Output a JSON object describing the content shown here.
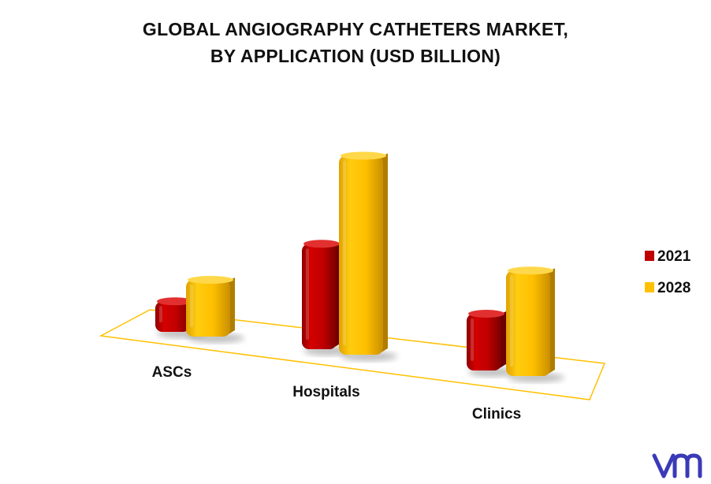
{
  "chart_data": {
    "type": "bar",
    "title_lines": [
      "GLOBAL ANGIOGRAPHY CATHETERS MARKET,",
      "BY APPLICATION (USD BILLION)"
    ],
    "categories": [
      "ASCs",
      "Hospitals",
      "Clinics"
    ],
    "series": [
      {
        "name": "2021",
        "values": [
          0.9,
          2.9,
          1.6
        ],
        "color": "#c00000"
      },
      {
        "name": "2028",
        "values": [
          1.6,
          5.4,
          2.9
        ],
        "color": "#ffc000"
      }
    ],
    "ylim": [
      0,
      6
    ],
    "grid": false,
    "legend": "right",
    "style": "3d-perspective"
  },
  "logo": {
    "text": "vm",
    "color": "#3a3ab8"
  }
}
